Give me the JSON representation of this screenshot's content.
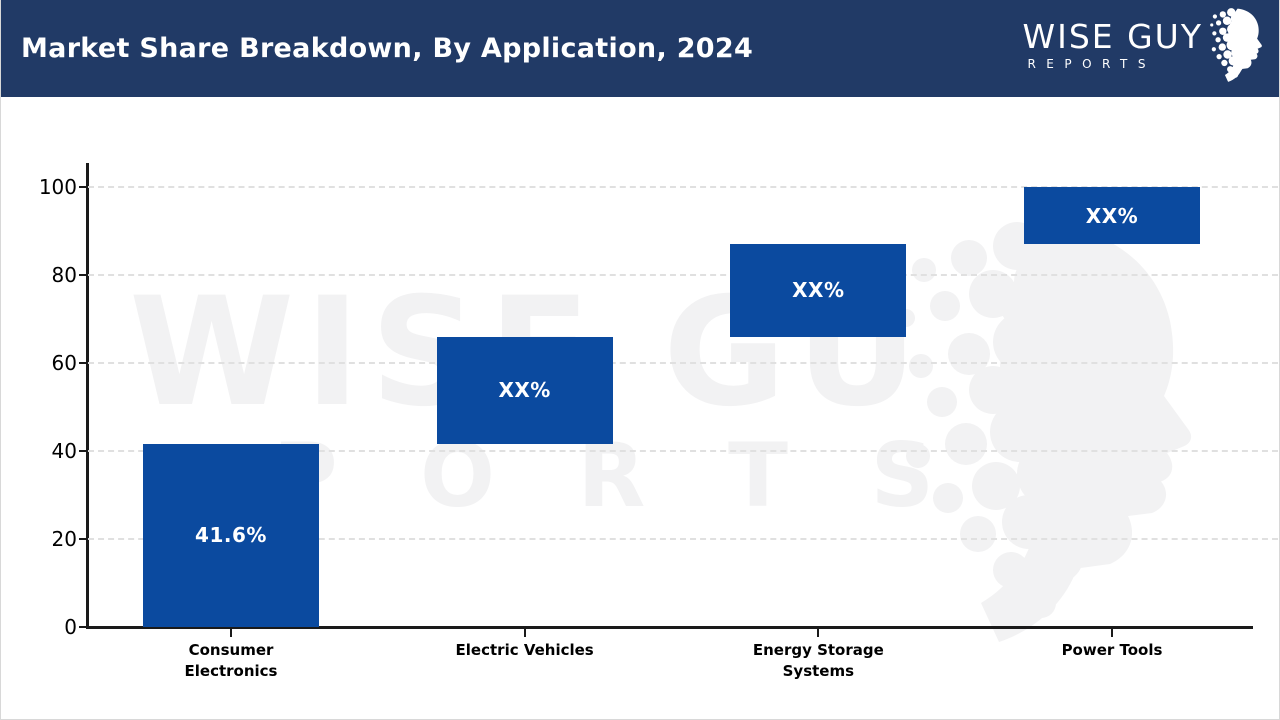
{
  "header": {
    "title": "Market Share Breakdown, By Application, 2024",
    "bg_color": "#213a66",
    "logo": {
      "wordmark": "WISE GUY",
      "subtext": "REPORTS",
      "head_icon": "dotted-face-profile"
    }
  },
  "watermark": {
    "line1": "WISE GU Y.",
    "line2": "P O R T S",
    "head_icon": "dotted-face-profile",
    "color": "#f2f2f3"
  },
  "chart_data": {
    "type": "bar",
    "subtype": "waterfall",
    "title": "Market Share Breakdown, By Application, 2024",
    "categories": [
      "Consumer Electronics",
      "Electric Vehicles",
      "Energy Storage Systems",
      "Power Tools"
    ],
    "tick_labels": [
      "Consumer\nElectronics",
      "Electric Vehicles",
      "Energy Storage\nSystems",
      "Power Tools"
    ],
    "bars": [
      {
        "category": "Consumer Electronics",
        "start": 0,
        "end": 41.6,
        "value": 41.6,
        "label": "41.6%"
      },
      {
        "category": "Electric Vehicles",
        "start": 41.6,
        "end": 66,
        "value": "XX",
        "label": "XX%"
      },
      {
        "category": "Energy Storage Systems",
        "start": 66,
        "end": 87,
        "value": "XX",
        "label": "XX%"
      },
      {
        "category": "Power Tools",
        "start": 87,
        "end": 100,
        "value": "XX",
        "label": "XX%"
      }
    ],
    "ylim": [
      0,
      100
    ],
    "yticks": [
      0,
      20,
      40,
      60,
      80,
      100
    ],
    "xlabel": "",
    "ylabel": "",
    "legend": null,
    "grid": {
      "axis": "y",
      "style": "dashed",
      "color": "#e0e0e0"
    },
    "bar_color": "#0b4a9f",
    "bar_label_color": "#ffffff",
    "axis_color": "#1a1a1a"
  }
}
